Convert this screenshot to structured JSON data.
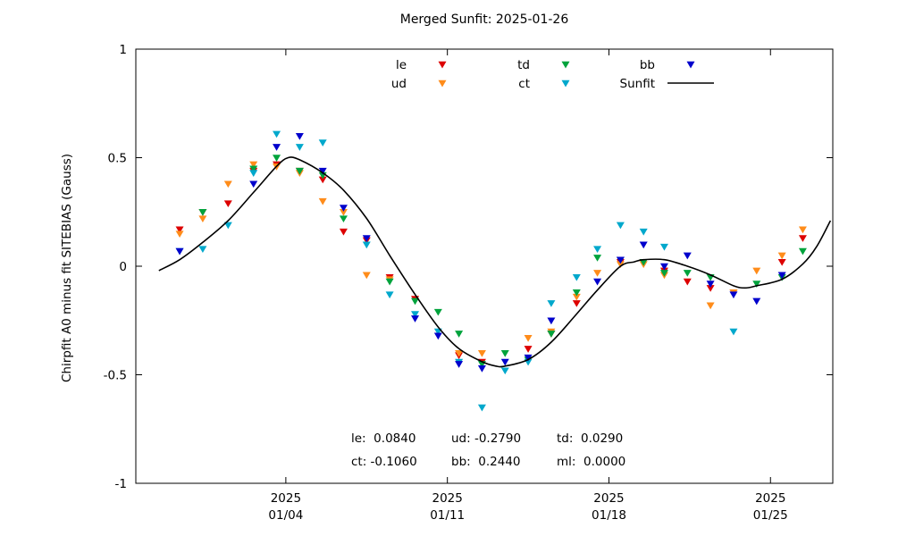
{
  "annotation": {
    "line1": [
      "le:  0.0840",
      "ud: -0.2790",
      "td:  0.0290"
    ],
    "line2": [
      "ct: -0.1060",
      "bb:  0.2440",
      "ml:  0.0000"
    ]
  },
  "chart_data": {
    "type": "scatter",
    "title": "Merged Sunfit: 2025-01-26",
    "xlabel": "",
    "ylabel": "Chirpfit A0 minus fit SITEBIAS (Gauss)",
    "ylim": [
      -1,
      1
    ],
    "xlim": [
      -2.5,
      27.7
    ],
    "x_unit": "day of January 2025 (fractional, estimated from tick positions)",
    "grid": false,
    "legend_position": "top-center-inside",
    "yticks": [
      {
        "v": 1,
        "label": "1"
      },
      {
        "v": 0.5,
        "label": "0.5"
      },
      {
        "v": 0,
        "label": "0"
      },
      {
        "v": -0.5,
        "label": "-0.5"
      },
      {
        "v": -1,
        "label": "-1"
      }
    ],
    "xticks": [
      {
        "x": 4,
        "line1": "2025",
        "line2": "01/04"
      },
      {
        "x": 11,
        "line1": "2025",
        "line2": "01/11"
      },
      {
        "x": 18,
        "line1": "2025",
        "line2": "01/18"
      },
      {
        "x": 25,
        "line1": "2025",
        "line2": "01/25"
      }
    ],
    "legend_rows": [
      [
        "le",
        "td",
        "bb"
      ],
      [
        "ud",
        "ct",
        "Sunfit"
      ]
    ],
    "series": [
      {
        "name": "le",
        "type": "scatter",
        "marker": "triangle-down",
        "color": "#dd0000",
        "points": [
          [
            -0.6,
            0.17
          ],
          [
            0.4,
            0.25
          ],
          [
            1.5,
            0.29
          ],
          [
            2.6,
            0.44
          ],
          [
            3.6,
            0.47
          ],
          [
            4.6,
            0.44
          ],
          [
            5.6,
            0.4
          ],
          [
            6.5,
            0.16
          ],
          [
            7.5,
            0.12
          ],
          [
            8.5,
            -0.05
          ],
          [
            9.6,
            -0.15
          ],
          [
            11.5,
            -0.41
          ],
          [
            12.5,
            -0.44
          ],
          [
            14.5,
            -0.38
          ],
          [
            15.5,
            -0.31
          ],
          [
            16.6,
            -0.17
          ],
          [
            18.5,
            0.02
          ],
          [
            19.5,
            0.02
          ],
          [
            20.4,
            -0.02
          ],
          [
            21.4,
            -0.07
          ],
          [
            22.4,
            -0.1
          ],
          [
            23.4,
            -0.12
          ],
          [
            25.5,
            0.02
          ],
          [
            26.4,
            0.13
          ]
        ]
      },
      {
        "name": "ud",
        "type": "scatter",
        "marker": "triangle-down",
        "color": "#ff8c1a",
        "points": [
          [
            -0.6,
            0.15
          ],
          [
            0.4,
            0.22
          ],
          [
            1.5,
            0.38
          ],
          [
            2.6,
            0.47
          ],
          [
            3.6,
            0.46
          ],
          [
            4.6,
            0.43
          ],
          [
            5.6,
            0.3
          ],
          [
            6.5,
            0.25
          ],
          [
            7.5,
            -0.04
          ],
          [
            8.5,
            -0.06
          ],
          [
            11.5,
            -0.4
          ],
          [
            12.5,
            -0.4
          ],
          [
            14.5,
            -0.33
          ],
          [
            15.5,
            -0.3
          ],
          [
            16.6,
            -0.14
          ],
          [
            17.5,
            -0.03
          ],
          [
            18.5,
            0.01
          ],
          [
            19.5,
            0.01
          ],
          [
            20.4,
            -0.04
          ],
          [
            22.4,
            -0.18
          ],
          [
            23.4,
            -0.12
          ],
          [
            24.4,
            -0.02
          ],
          [
            25.5,
            0.05
          ],
          [
            26.4,
            0.17
          ]
        ]
      },
      {
        "name": "td",
        "type": "scatter",
        "marker": "triangle-down",
        "color": "#00a33c",
        "points": [
          [
            0.4,
            0.25
          ],
          [
            2.6,
            0.45
          ],
          [
            3.6,
            0.5
          ],
          [
            4.6,
            0.44
          ],
          [
            5.6,
            0.42
          ],
          [
            6.5,
            0.22
          ],
          [
            8.5,
            -0.07
          ],
          [
            9.6,
            -0.16
          ],
          [
            10.6,
            -0.21
          ],
          [
            11.5,
            -0.31
          ],
          [
            12.5,
            -0.45
          ],
          [
            13.5,
            -0.4
          ],
          [
            14.5,
            -0.43
          ],
          [
            15.5,
            -0.31
          ],
          [
            16.6,
            -0.12
          ],
          [
            17.5,
            0.04
          ],
          [
            18.5,
            0.03
          ],
          [
            19.5,
            0.02
          ],
          [
            20.4,
            -0.03
          ],
          [
            21.4,
            -0.03
          ],
          [
            22.4,
            -0.05
          ],
          [
            24.4,
            -0.08
          ],
          [
            25.5,
            -0.05
          ],
          [
            26.4,
            0.07
          ]
        ]
      },
      {
        "name": "ct",
        "type": "scatter",
        "marker": "triangle-down",
        "color": "#00a8cc",
        "points": [
          [
            -0.6,
            0.07
          ],
          [
            0.4,
            0.08
          ],
          [
            1.5,
            0.19
          ],
          [
            2.6,
            0.43
          ],
          [
            3.6,
            0.61
          ],
          [
            4.6,
            0.55
          ],
          [
            5.6,
            0.57
          ],
          [
            7.5,
            0.1
          ],
          [
            8.5,
            -0.13
          ],
          [
            9.6,
            -0.22
          ],
          [
            10.6,
            -0.3
          ],
          [
            11.5,
            -0.44
          ],
          [
            12.5,
            -0.65
          ],
          [
            13.5,
            -0.48
          ],
          [
            14.5,
            -0.44
          ],
          [
            15.5,
            -0.17
          ],
          [
            16.6,
            -0.05
          ],
          [
            17.5,
            0.08
          ],
          [
            18.5,
            0.19
          ],
          [
            19.5,
            0.16
          ],
          [
            20.4,
            0.09
          ],
          [
            23.4,
            -0.3
          ]
        ]
      },
      {
        "name": "bb",
        "type": "scatter",
        "marker": "triangle-down",
        "color": "#0000cc",
        "points": [
          [
            -0.6,
            0.07
          ],
          [
            2.6,
            0.38
          ],
          [
            3.6,
            0.55
          ],
          [
            4.6,
            0.6
          ],
          [
            5.6,
            0.44
          ],
          [
            6.5,
            0.27
          ],
          [
            7.5,
            0.13
          ],
          [
            9.6,
            -0.24
          ],
          [
            10.6,
            -0.32
          ],
          [
            11.5,
            -0.45
          ],
          [
            12.5,
            -0.47
          ],
          [
            13.5,
            -0.44
          ],
          [
            14.5,
            -0.42
          ],
          [
            15.5,
            -0.25
          ],
          [
            17.5,
            -0.07
          ],
          [
            18.5,
            0.03
          ],
          [
            19.5,
            0.1
          ],
          [
            20.4,
            0.0
          ],
          [
            21.4,
            0.05
          ],
          [
            22.4,
            -0.08
          ],
          [
            23.4,
            -0.13
          ],
          [
            24.4,
            -0.16
          ],
          [
            25.5,
            -0.04
          ]
        ]
      },
      {
        "name": "Sunfit",
        "type": "line",
        "color": "#000000",
        "points": [
          [
            -1.5,
            -0.02
          ],
          [
            -0.6,
            0.03
          ],
          [
            0.4,
            0.11
          ],
          [
            1.5,
            0.21
          ],
          [
            2.6,
            0.34
          ],
          [
            3.6,
            0.46
          ],
          [
            4.1,
            0.5
          ],
          [
            4.6,
            0.49
          ],
          [
            5.6,
            0.43
          ],
          [
            6.5,
            0.35
          ],
          [
            7.5,
            0.22
          ],
          [
            8.5,
            0.05
          ],
          [
            9.6,
            -0.13
          ],
          [
            10.6,
            -0.28
          ],
          [
            11.5,
            -0.38
          ],
          [
            12.5,
            -0.44
          ],
          [
            13.1,
            -0.46
          ],
          [
            13.5,
            -0.46
          ],
          [
            14.5,
            -0.43
          ],
          [
            15.5,
            -0.35
          ],
          [
            16.6,
            -0.22
          ],
          [
            17.5,
            -0.11
          ],
          [
            18.5,
            0.0
          ],
          [
            19.1,
            0.02
          ],
          [
            19.5,
            0.03
          ],
          [
            20.4,
            0.03
          ],
          [
            21.4,
            0.0
          ],
          [
            22.4,
            -0.04
          ],
          [
            23.4,
            -0.09
          ],
          [
            23.9,
            -0.1
          ],
          [
            24.4,
            -0.09
          ],
          [
            25.5,
            -0.06
          ],
          [
            26.4,
            0.01
          ],
          [
            27.0,
            0.09
          ],
          [
            27.6,
            0.21
          ]
        ]
      }
    ]
  }
}
